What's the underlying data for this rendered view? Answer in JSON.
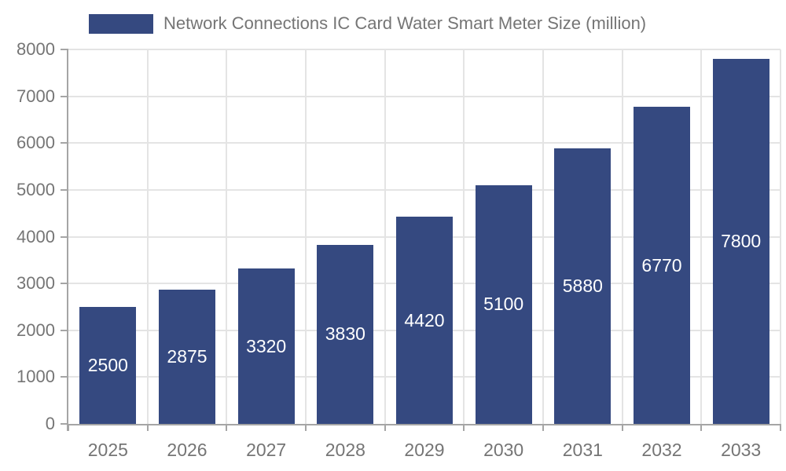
{
  "chart_data": {
    "type": "bar",
    "title": "Network Connections IC Card Water Smart Meter Size (million)",
    "legend": [
      "Network Connections IC Card Water Smart Meter Size (million)"
    ],
    "legend_position": "top-left",
    "categories": [
      "2025",
      "2026",
      "2027",
      "2028",
      "2029",
      "2030",
      "2031",
      "2032",
      "2033"
    ],
    "values": [
      2500,
      2875,
      3320,
      3830,
      4420,
      5100,
      5880,
      6770,
      7800
    ],
    "xlabel": "",
    "ylabel": "",
    "ylim": [
      0,
      8000
    ],
    "yticks": [
      0,
      1000,
      2000,
      3000,
      4000,
      5000,
      6000,
      7000,
      8000
    ],
    "grid": true,
    "value_labels": "centered-inside-bars",
    "colors": {
      "bar": "#354980",
      "bar_label": "#ffffff",
      "axis_text": "#757575",
      "gridline": "#e4e4e4",
      "axis_line": "#a5a5a5",
      "background": "#ffffff"
    }
  }
}
